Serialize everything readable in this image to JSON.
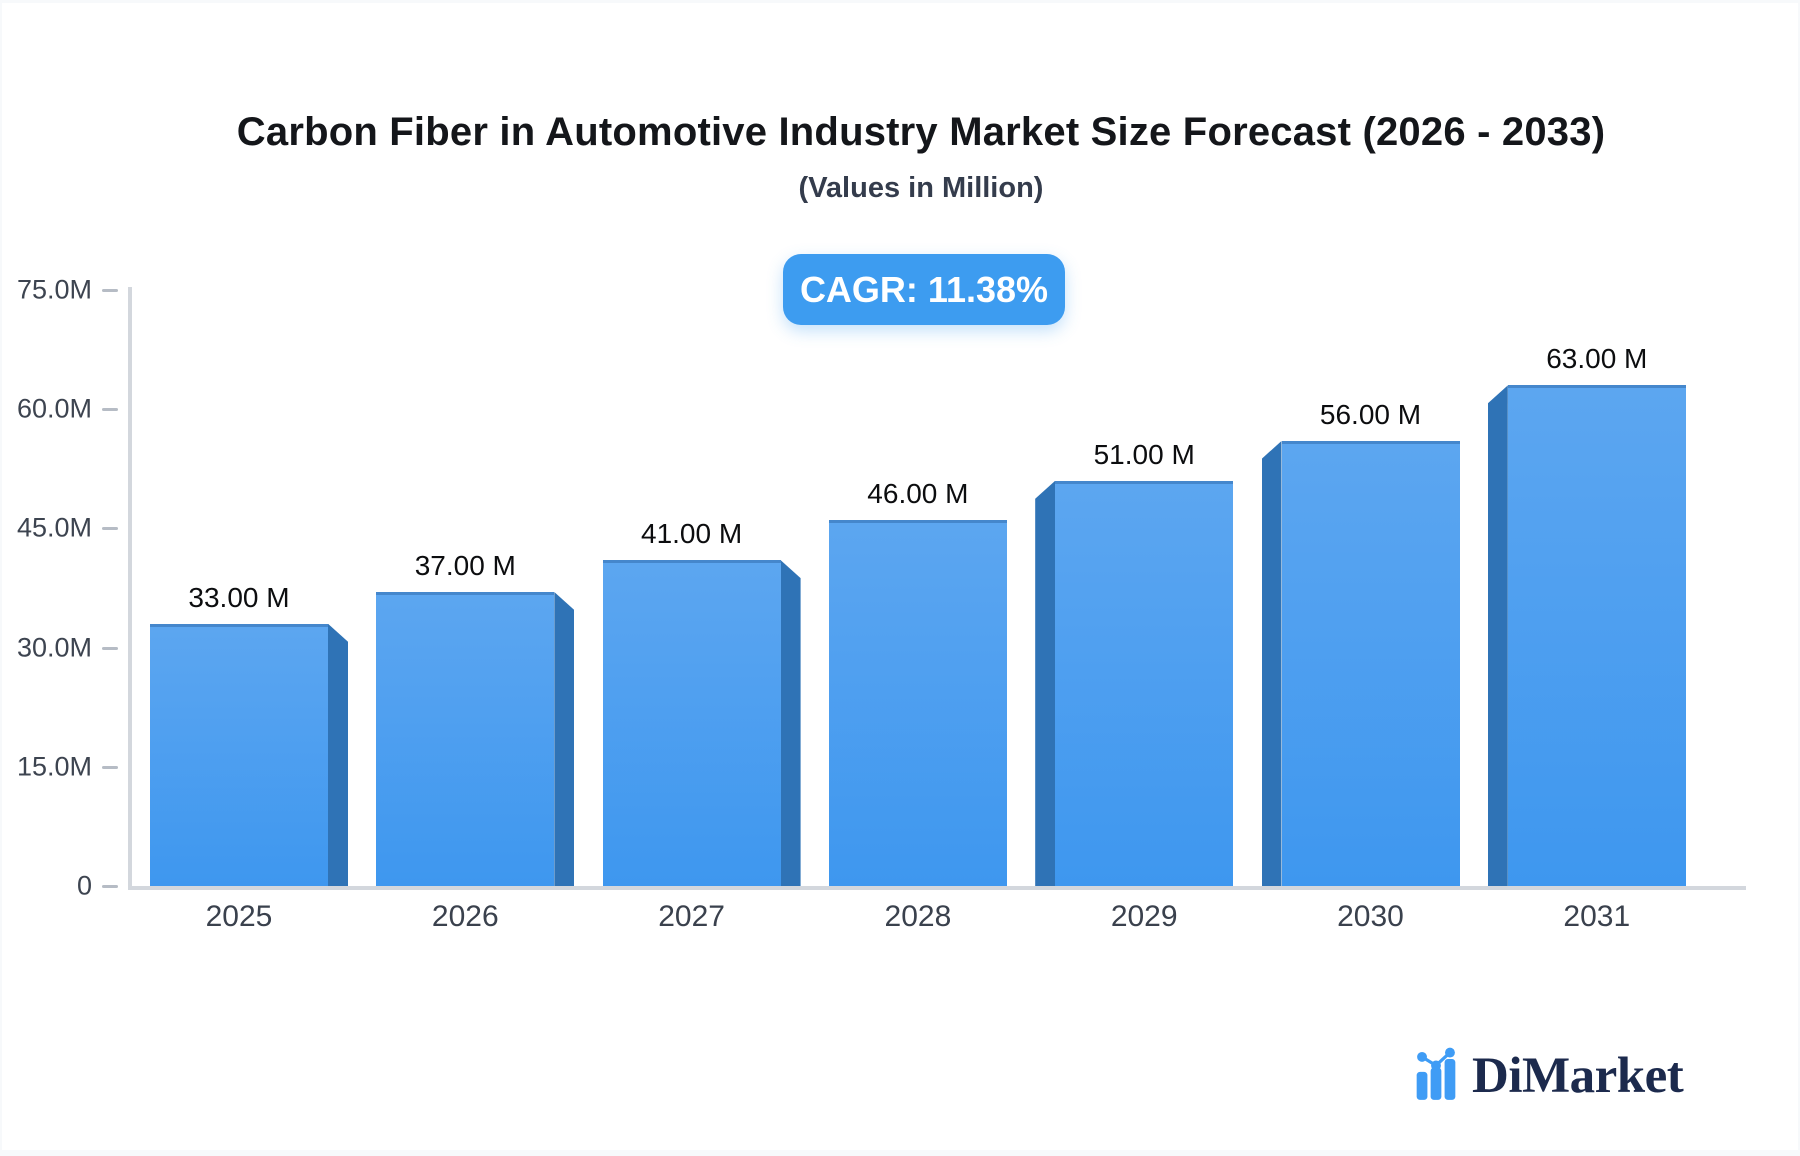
{
  "header": {
    "title": "Carbon Fiber in Automotive Industry Market Size Forecast (2026 - 2033)",
    "subtitle": "(Values in Million)"
  },
  "badge": {
    "label": "CAGR: 11.38%"
  },
  "chart_data": {
    "type": "bar",
    "title": "Carbon Fiber in Automotive Industry Market Size Forecast (2026 - 2033)",
    "subtitle": "(Values in Million)",
    "unit": "Million",
    "categories": [
      "2025",
      "2026",
      "2027",
      "2028",
      "2029",
      "2030",
      "2031"
    ],
    "values": [
      33,
      37,
      41,
      46,
      51,
      56,
      63
    ],
    "value_labels": [
      "33.00 M",
      "37.00 M",
      "41.00 M",
      "46.00 M",
      "51.00 M",
      "56.00 M",
      "63.00 M"
    ],
    "xlabel": "",
    "ylabel": "",
    "ylim": [
      0,
      75
    ],
    "y_ticks": [
      {
        "label": "75.0M",
        "value": 75
      },
      {
        "label": "60.0M",
        "value": 60
      },
      {
        "label": "45.0M",
        "value": 45
      },
      {
        "label": "30.0M",
        "value": 30
      },
      {
        "label": "15.0M",
        "value": 15
      },
      {
        "label": "0",
        "value": 0
      }
    ],
    "grid": "off",
    "legend": "none",
    "bar_style_3d": true
  },
  "logo": {
    "name": "DiMarket",
    "icon": "bar-chart-logo-icon"
  },
  "colors": {
    "page_bg": "#f7f9fb",
    "card_bg": "#ffffff",
    "title": "#14161a",
    "subtitle": "#343c4c",
    "badge_bg": "#3d9cf0",
    "badge_text": "#ffffff",
    "bar_top": "#5ca6f0",
    "bar_bottom": "#3e97ef",
    "bar_top_edge": "#4587cc",
    "bar_side": "#2f73b6",
    "axis_line": "#d3d7dd",
    "tick_dash": "#b6bcc5",
    "y_label": "#3d4450",
    "x_label": "#3a414d",
    "value_label": "#0c0d0f",
    "logo_text": "#1c2a4d",
    "logo_icon": "#3f9cf5"
  }
}
